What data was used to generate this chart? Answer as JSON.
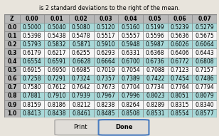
{
  "title": "is 2 standard deviations to the right of the mean.",
  "columns": [
    "Z",
    "0.00",
    "0.01",
    "0.02",
    "0.03",
    "0.04",
    "0.05",
    "0.06",
    "0.07"
  ],
  "rows": [
    [
      "0.0",
      "0.5000",
      "0.5040",
      "0.5080",
      "0.5120",
      "0.5160",
      "0.5199",
      "0.5239",
      "0.5279"
    ],
    [
      "0.1",
      "0.5398",
      "0.5438",
      "0.5478",
      "0.5517",
      "0.5557",
      "0.5596",
      "0.5636",
      "0.5675"
    ],
    [
      "0.2",
      "0.5793",
      "0.5832",
      "0.5871",
      "0.5910",
      "0.5948",
      "0.5987",
      "0.6026",
      "0.6064"
    ],
    [
      "0.3",
      "0.6179",
      "0.6217",
      "0.6255",
      "0.6293",
      "0.6331",
      "0.6368",
      "0.6406",
      "0.6443"
    ],
    [
      "0.4",
      "0.6554",
      "0.6591",
      "0.6628",
      "0.6664",
      "0.6700",
      "0.6736",
      "0.6772",
      "0.6808"
    ],
    [
      "0.5",
      "0.6915",
      "0.6950",
      "0.6985",
      "0.7019",
      "0.7054",
      "0.7088",
      "0.7123",
      "0.7157"
    ],
    [
      "0.6",
      "0.7258",
      "0.7291",
      "0.7324",
      "0.7357",
      "0.7389",
      "0.7422",
      "0.7454",
      "0.7486"
    ],
    [
      "0.7",
      "0.7580",
      "0.7612",
      "0.7642",
      "0.7673",
      "0.7704",
      "0.7734",
      "0.7764",
      "0.7794"
    ],
    [
      "0.8",
      "0.7881",
      "0.7910",
      "0.7939",
      "0.7967",
      "0.7996",
      "0.8023",
      "0.8051",
      "0.8079"
    ],
    [
      "0.9",
      "0.8159",
      "0.8186",
      "0.8212",
      "0.8238",
      "0.8264",
      "0.8289",
      "0.8315",
      "0.8340"
    ],
    [
      "1.0",
      "0.8413",
      "0.8438",
      "0.8461",
      "0.8485",
      "0.8508",
      "0.8531",
      "0.8554",
      "0.8577"
    ]
  ],
  "header_bg": "#b8b8b8",
  "row_bg_teal": "#a8d8d8",
  "row_bg_white": "#f5f5f5",
  "z_col_bg_even": "#a8d8d8",
  "z_col_bg_odd": "#c8c8c8",
  "border_color": "#888888",
  "header_text_color": "#000000",
  "cell_text_color": "#000000",
  "fig_bg": "#e8e4dc",
  "outer_border_color": "#888888",
  "button_done_border": "#4a7cc0",
  "button_bg": "#e0ddd8",
  "fontsize_title": 5.8,
  "fontsize_table": 5.5,
  "fontsize_btn": 6.0
}
